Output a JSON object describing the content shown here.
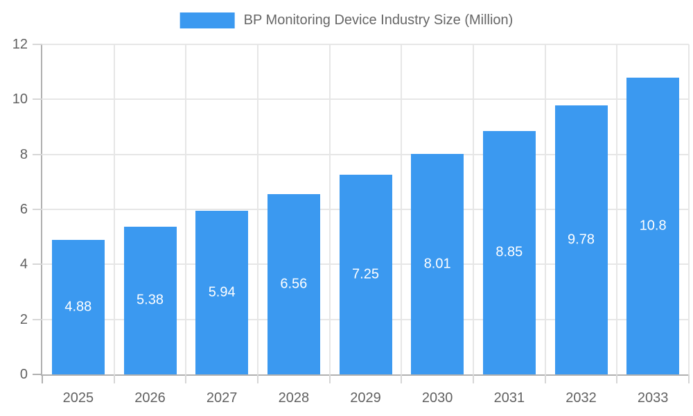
{
  "legend": {
    "label": "BP Monitoring Device Industry Size (Million)"
  },
  "chart_data": {
    "type": "bar",
    "title": "BP Monitoring Device Industry Size (Million)",
    "series_name": "BP Monitoring Device Industry Size (Million)",
    "categories": [
      "2025",
      "2026",
      "2027",
      "2028",
      "2029",
      "2030",
      "2031",
      "2032",
      "2033"
    ],
    "values": [
      4.88,
      5.38,
      5.94,
      6.56,
      7.25,
      8.01,
      8.85,
      9.78,
      10.8
    ],
    "value_labels": [
      "4.88",
      "5.38",
      "5.94",
      "6.56",
      "7.25",
      "8.01",
      "8.85",
      "9.78",
      "10.8"
    ],
    "xlabel": "",
    "ylabel": "",
    "ylim": [
      0,
      12
    ],
    "yticks": [
      0,
      2,
      4,
      6,
      8,
      10,
      12
    ],
    "grid": true,
    "legend_position": "top",
    "colors": {
      "bar": "#3B99F0",
      "value_label": "#FFFFFF",
      "gridline": "#E6E6E6",
      "axis_line": "#B0B0B0",
      "tick_mark": "#D6D6D6",
      "axis_text": "#616161",
      "legend_text": "#666666",
      "background": "#FFFFFF"
    }
  }
}
